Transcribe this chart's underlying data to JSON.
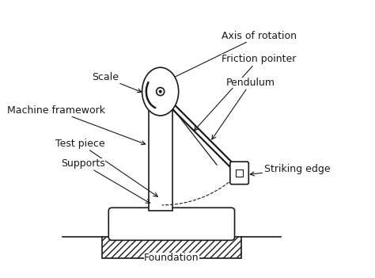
{
  "bg_color": "#ffffff",
  "line_color": "#1a1a1a",
  "labels": {
    "axis_of_rotation": "Axis of rotation",
    "friction_pointer": "Friction pointer",
    "pendulum": "Pendulum",
    "scale": "Scale",
    "machine_framework": "Machine framework",
    "test_piece": "Test piece",
    "supports": "Supports",
    "striking_edge": "Striking edge",
    "foundation": "Foundation"
  },
  "font_size": 9,
  "fig_width": 4.74,
  "fig_height": 3.51,
  "dpi": 100
}
